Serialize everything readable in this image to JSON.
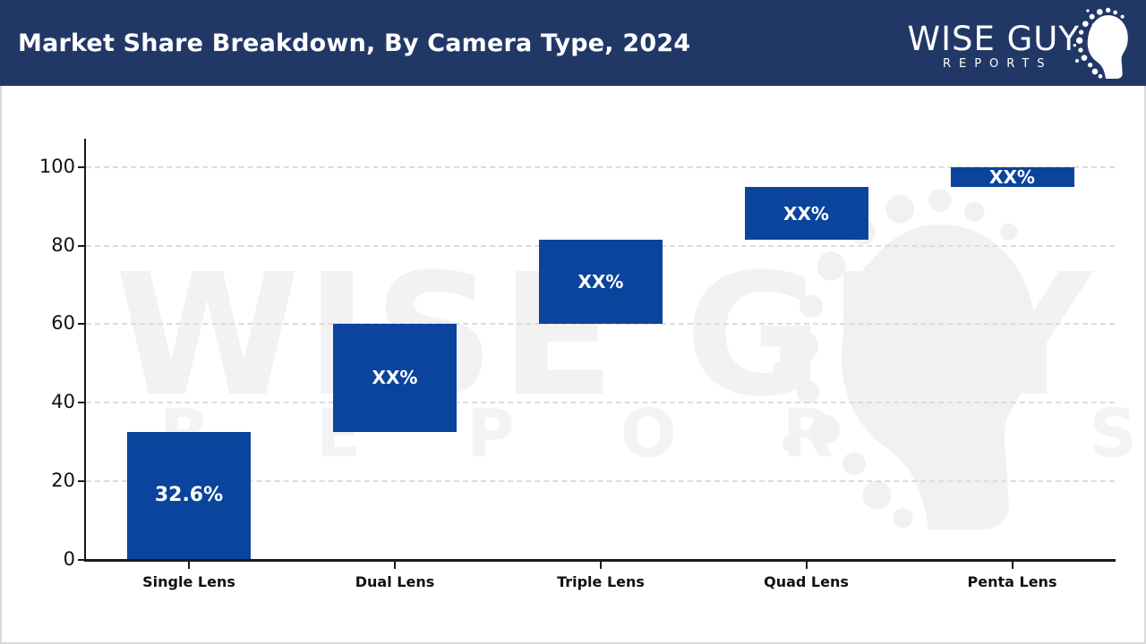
{
  "header": {
    "title": "Market Share Breakdown, By Camera Type, 2024",
    "bg_color": "#213867",
    "logo": {
      "line1": "WISE GUY",
      "line2": "REPORTS"
    }
  },
  "watermark": {
    "line1": "WISE GUY",
    "line2": "R E P O R T S"
  },
  "chart_data": {
    "type": "bar",
    "subtype": "waterfall",
    "title": "Market Share Breakdown, By Camera Type, 2024",
    "categories": [
      "Single Lens",
      "Dual Lens",
      "Triple Lens",
      "Quad Lens",
      "Penta Lens"
    ],
    "segments": [
      {
        "category": "Single Lens",
        "start": 0,
        "end": 32.6,
        "label": "32.6%"
      },
      {
        "category": "Dual Lens",
        "start": 32.6,
        "end": 60,
        "label": "XX%"
      },
      {
        "category": "Triple Lens",
        "start": 60,
        "end": 81.5,
        "label": "XX%"
      },
      {
        "category": "Quad Lens",
        "start": 81.5,
        "end": 95,
        "label": "XX%"
      },
      {
        "category": "Penta Lens",
        "start": 95,
        "end": 100,
        "label": "XX%"
      }
    ],
    "yticks": [
      0,
      20,
      40,
      60,
      80,
      100
    ],
    "ylim": [
      0,
      105
    ],
    "xlabel": "",
    "ylabel": "",
    "bar_color": "#0a449c",
    "grid": "horizontal dashed",
    "legend": "none"
  }
}
